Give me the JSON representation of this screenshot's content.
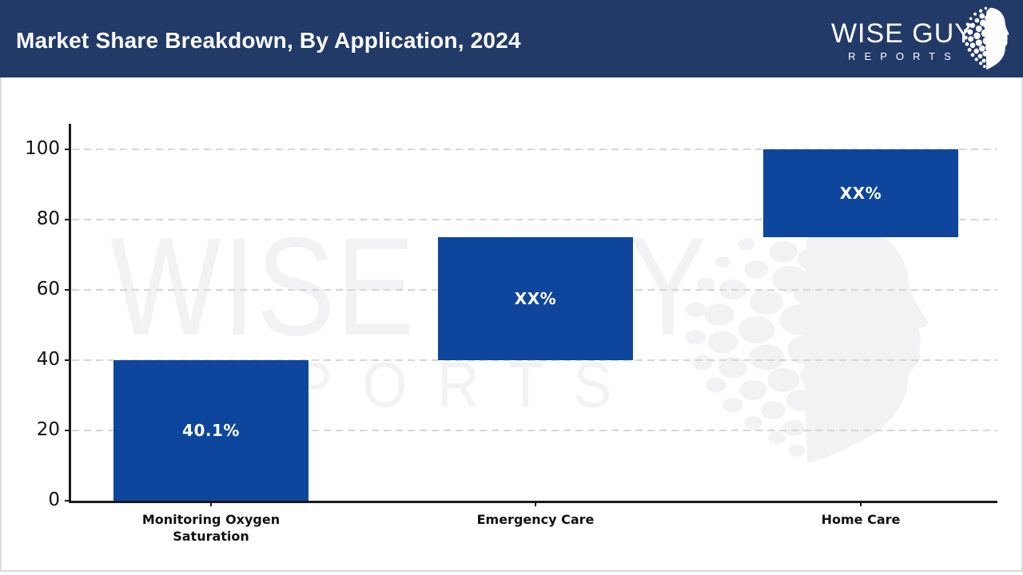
{
  "header": {
    "title": "Market Share Breakdown, By Application, 2024",
    "bg_color": "#223A68",
    "logo": {
      "name_line": "WISE GUY",
      "sub_line": "REPORTS"
    }
  },
  "watermark": {
    "name_line": "WISE GUY",
    "sub_line": "REPORTS"
  },
  "chart_data": {
    "type": "bar",
    "subtype": "floating-range-bars (waterfall-style share breakdown)",
    "title": "Market Share Breakdown, By Application, 2024",
    "categories": [
      "Monitoring Oxygen\nSaturation",
      "Emergency Care",
      "Home Care"
    ],
    "bars": [
      {
        "category": "Monitoring Oxygen Saturation",
        "start": 0,
        "end": 40.1,
        "label": "40.1%"
      },
      {
        "category": "Emergency Care",
        "start": 40,
        "end": 75,
        "label": "XX%"
      },
      {
        "category": "Home Care",
        "start": 75,
        "end": 100,
        "label": "XX%"
      }
    ],
    "xlabel": "",
    "ylabel": "",
    "ylim": [
      0,
      100
    ],
    "yticks": [
      0,
      20,
      40,
      60,
      80,
      100
    ],
    "grid": "horizontal dashed",
    "legend": "none",
    "bar_color": "#0D469C",
    "bar_label_color": "#FFFFFF",
    "axis_color": "#1A1A1A",
    "grid_color": "#D6D6D6",
    "tick_label_color": "#111111"
  }
}
